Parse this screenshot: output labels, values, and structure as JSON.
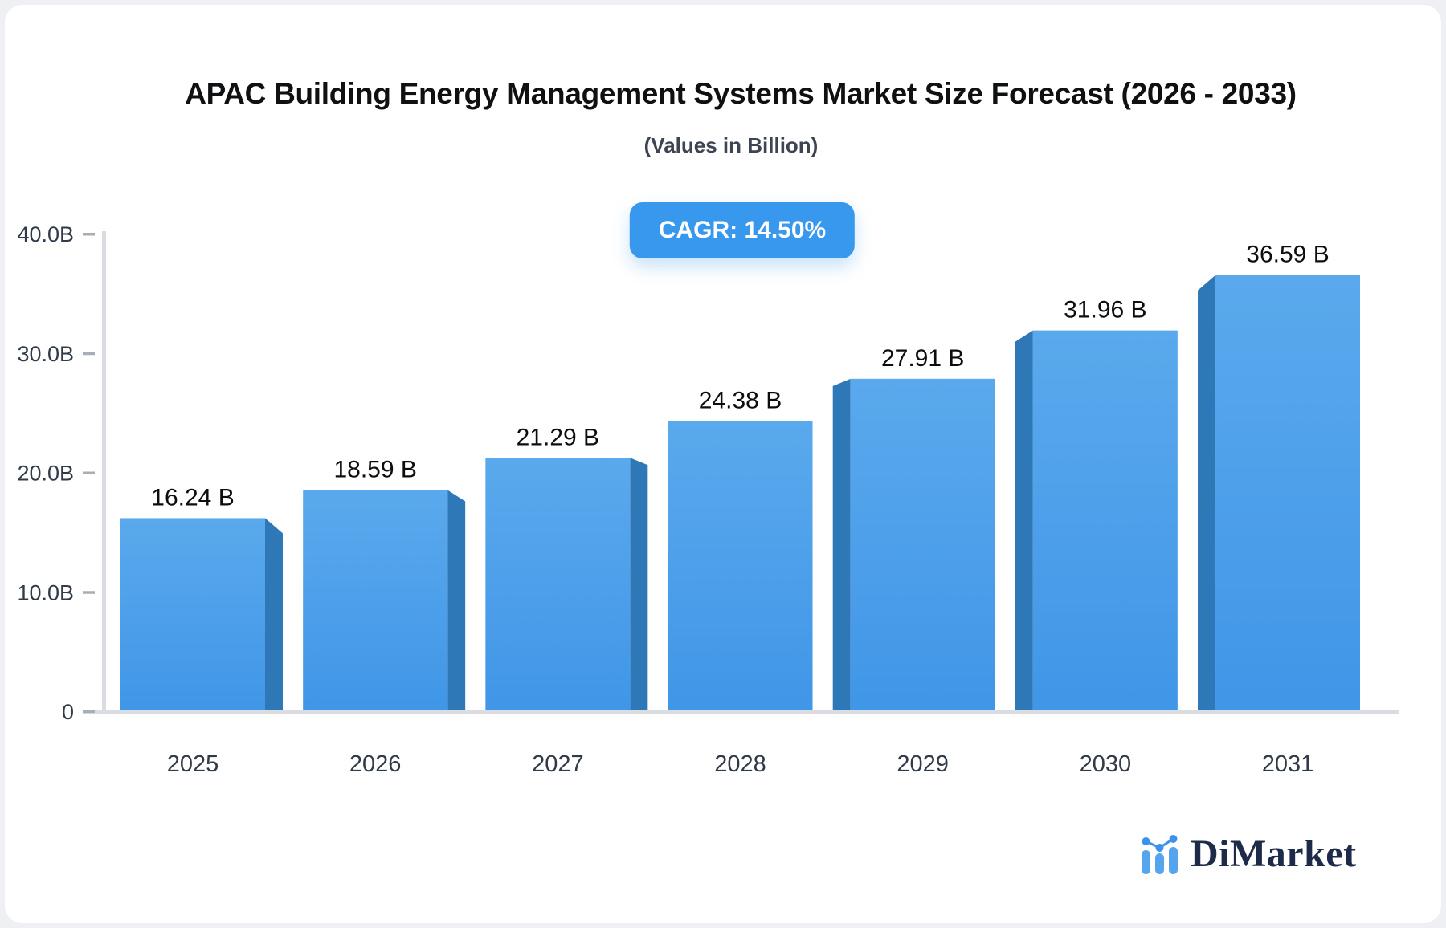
{
  "badge": {
    "label": "CAGR: 14.50%",
    "background": "#3898ee",
    "text_color": "#ffffff"
  },
  "logo": {
    "name": "DiMarket",
    "text_color": "#1c2b4a",
    "bar_color": "#54a4ee",
    "dot_color": "#3a92ea"
  },
  "chart_data": {
    "type": "bar",
    "title": "APAC Building Energy Management Systems Market Size Forecast (2026 - 2033)",
    "subtitle": "(Values in Billion)",
    "categories": [
      "2025",
      "2026",
      "2027",
      "2028",
      "2029",
      "2030",
      "2031"
    ],
    "values": [
      16.24,
      18.59,
      21.29,
      24.38,
      27.91,
      31.96,
      36.59
    ],
    "value_labels": [
      "16.24 B",
      "18.59 B",
      "21.29 B",
      "24.38 B",
      "27.91 B",
      "31.96 B",
      "36.59 B"
    ],
    "xlabel": "",
    "ylabel": "",
    "ylim": [
      0,
      40
    ],
    "ytick_labels": [
      "40.0B",
      "30.0B",
      "20.0B",
      "10.0B",
      "0"
    ],
    "ytick_values": [
      40,
      30,
      20,
      10,
      0
    ],
    "grid": false,
    "legend": false,
    "bar_color_top": "#5aa9ed",
    "bar_color_bottom": "#4096e7",
    "bar_side_color": "#2f78b8",
    "axis_color": "#d9dce1",
    "tick_color": "#a8aeb6",
    "axis_label_color": "#303a48",
    "value_label_color": "#0d0d0d"
  }
}
